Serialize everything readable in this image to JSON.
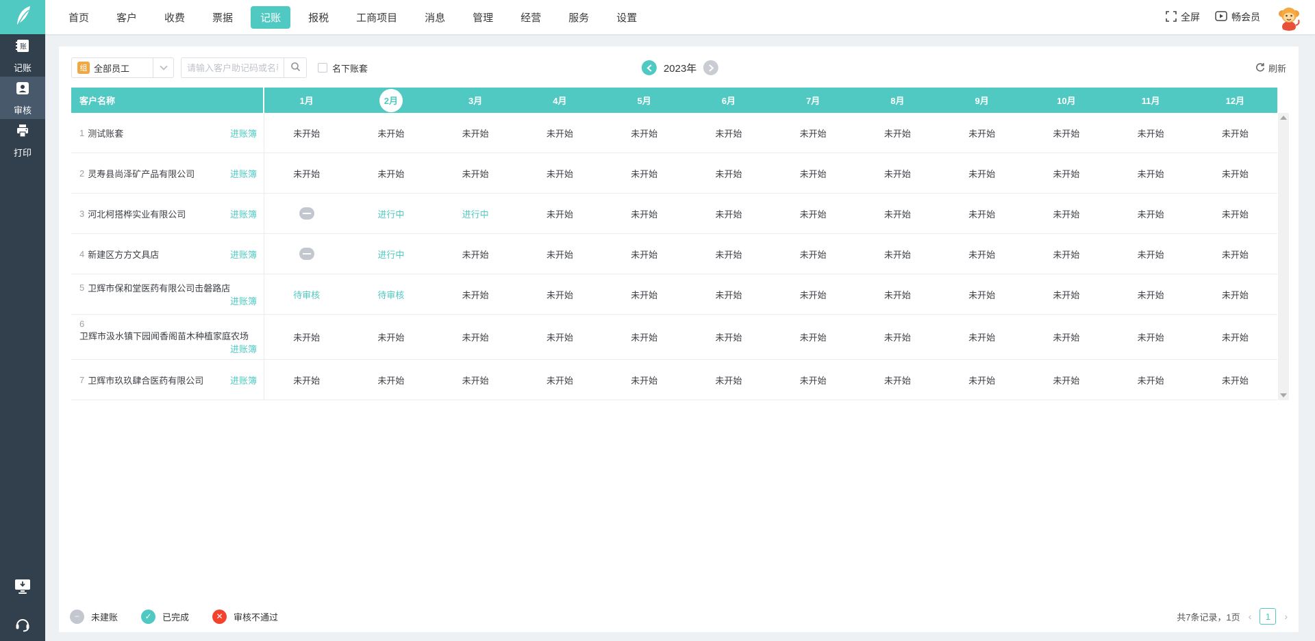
{
  "topbar": {
    "nav": [
      "首页",
      "客户",
      "收费",
      "票据",
      "记账",
      "报税",
      "工商项目",
      "消息",
      "管理",
      "经营",
      "服务",
      "设置"
    ],
    "active_index": 4,
    "fullscreen_label": "全屏",
    "member_label": "畅会员"
  },
  "sidebar": {
    "items": [
      {
        "label": "记账",
        "icon": "ledger",
        "active": false
      },
      {
        "label": "审核",
        "icon": "audit",
        "active": true
      },
      {
        "label": "打印",
        "icon": "print",
        "active": false
      }
    ],
    "bottom_icons": [
      "client-download",
      "customer-service"
    ]
  },
  "filters": {
    "employee_icon_char": "组",
    "employee_dropdown_value": "全部员工",
    "search_placeholder": "请输入客户助记码或名称",
    "checkbox_label": "名下账套",
    "year": "2023年",
    "refresh_label": "刷新"
  },
  "table": {
    "name_header": "客户名称",
    "months": [
      "1月",
      "2月",
      "3月",
      "4月",
      "5月",
      "6月",
      "7月",
      "8月",
      "9月",
      "10月",
      "11月",
      "12月"
    ],
    "current_month_index": 1,
    "link_label": "进账簿",
    "teal_statuses": [
      "进行中",
      "待审核"
    ],
    "rows": [
      {
        "num": "1",
        "name": "测试账套",
        "statuses": [
          "未开始",
          "未开始",
          "未开始",
          "未开始",
          "未开始",
          "未开始",
          "未开始",
          "未开始",
          "未开始",
          "未开始",
          "未开始",
          "未开始"
        ]
      },
      {
        "num": "2",
        "name": "灵寿县尚泽矿产品有限公司",
        "statuses": [
          "未开始",
          "未开始",
          "未开始",
          "未开始",
          "未开始",
          "未开始",
          "未开始",
          "未开始",
          "未开始",
          "未开始",
          "未开始",
          "未开始"
        ]
      },
      {
        "num": "3",
        "name": "河北柯搭桦实业有限公司",
        "statuses": [
          "minus",
          "进行中",
          "进行中",
          "未开始",
          "未开始",
          "未开始",
          "未开始",
          "未开始",
          "未开始",
          "未开始",
          "未开始",
          "未开始"
        ]
      },
      {
        "num": "4",
        "name": "新建区方方文具店",
        "statuses": [
          "minus",
          "进行中",
          "未开始",
          "未开始",
          "未开始",
          "未开始",
          "未开始",
          "未开始",
          "未开始",
          "未开始",
          "未开始",
          "未开始"
        ]
      },
      {
        "num": "5",
        "name": "卫辉市保和堂医药有限公司击磐路店",
        "statuses": [
          "待审核",
          "待审核",
          "未开始",
          "未开始",
          "未开始",
          "未开始",
          "未开始",
          "未开始",
          "未开始",
          "未开始",
          "未开始",
          "未开始"
        ]
      },
      {
        "num": "6",
        "name": "卫辉市汲水镇下园闻香阁苗木种植家庭农场",
        "statuses": [
          "未开始",
          "未开始",
          "未开始",
          "未开始",
          "未开始",
          "未开始",
          "未开始",
          "未开始",
          "未开始",
          "未开始",
          "未开始",
          "未开始"
        ]
      },
      {
        "num": "7",
        "name": "卫辉市玖玖肆合医药有限公司",
        "statuses": [
          "未开始",
          "未开始",
          "未开始",
          "未开始",
          "未开始",
          "未开始",
          "未开始",
          "未开始",
          "未开始",
          "未开始",
          "未开始",
          "未开始"
        ]
      }
    ]
  },
  "legend": {
    "items": [
      {
        "icon": "minus",
        "label": "未建账"
      },
      {
        "icon": "check",
        "label": "已完成"
      },
      {
        "icon": "cross",
        "label": "审核不通过"
      }
    ]
  },
  "pagination": {
    "summary": "共7条记录，1页",
    "page": "1"
  },
  "colors": {
    "accent_teal": "#4fc9c2",
    "sidebar_dark": "#32404e",
    "status_gray": "#c3c7cf",
    "error_red": "#f3432f",
    "org_orange": "#efa843"
  }
}
